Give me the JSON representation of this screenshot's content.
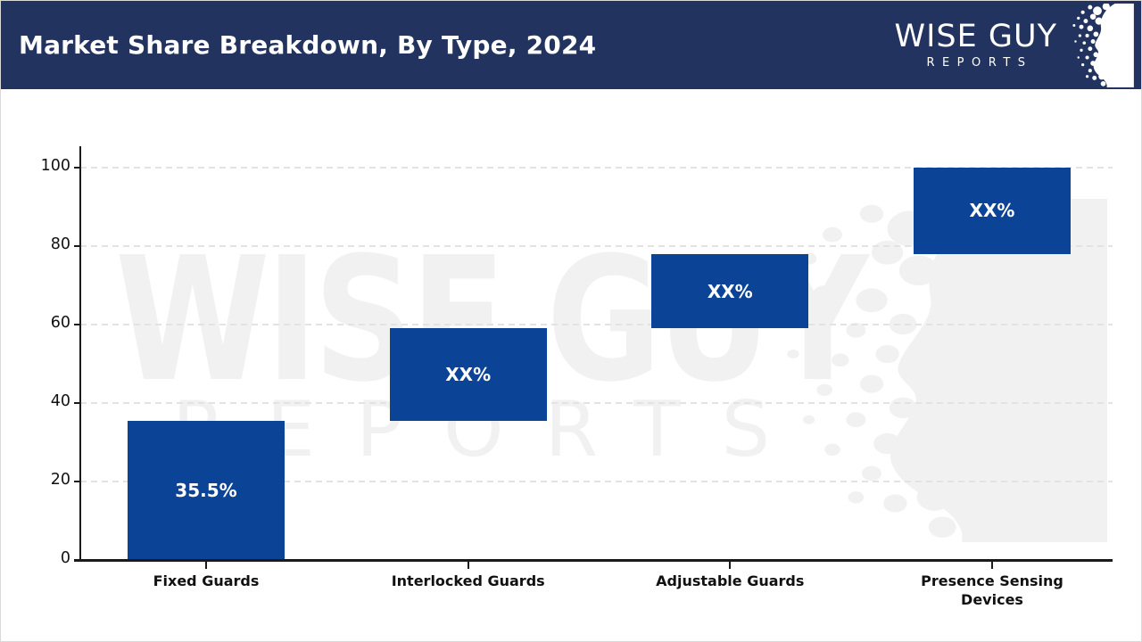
{
  "header": {
    "title": "Market Share Breakdown, By Type, 2024",
    "logo": {
      "line1": "WISE GUY",
      "line2": "REPORTS"
    }
  },
  "watermark": {
    "line1": "WISE GUY",
    "line2": "REPORTS"
  },
  "chart_data": {
    "type": "bar",
    "variant": "waterfall-floating-bars",
    "title": "Market Share Breakdown, By Type, 2024",
    "categories": [
      "Fixed Guards",
      "Interlocked Guards",
      "Adjustable Guards",
      "Presence Sensing Devices"
    ],
    "segments": [
      {
        "category": "Fixed Guards",
        "start": 0,
        "end": 35.5,
        "label": "35.5%"
      },
      {
        "category": "Interlocked Guards",
        "start": 35.5,
        "end": 59,
        "label": "XX%"
      },
      {
        "category": "Adjustable Guards",
        "start": 59,
        "end": 78,
        "label": "XX%"
      },
      {
        "category": "Presence Sensing Devices",
        "start": 78,
        "end": 100,
        "label": "XX%"
      }
    ],
    "yticks": [
      0,
      20,
      40,
      60,
      80,
      100
    ],
    "ylim": [
      0,
      105
    ],
    "xlabel": "",
    "ylabel": "",
    "legend": "none",
    "grid": "horizontal-dashed",
    "bar_color": "#0b4397",
    "bar_label_color": "#ffffff"
  },
  "colors": {
    "header_bg": "#22335f",
    "bar": "#0b4397",
    "gridline": "#e3e3e3",
    "axis": "#1a1a1a",
    "text": "#111111",
    "watermark": "#f1f1f2"
  }
}
